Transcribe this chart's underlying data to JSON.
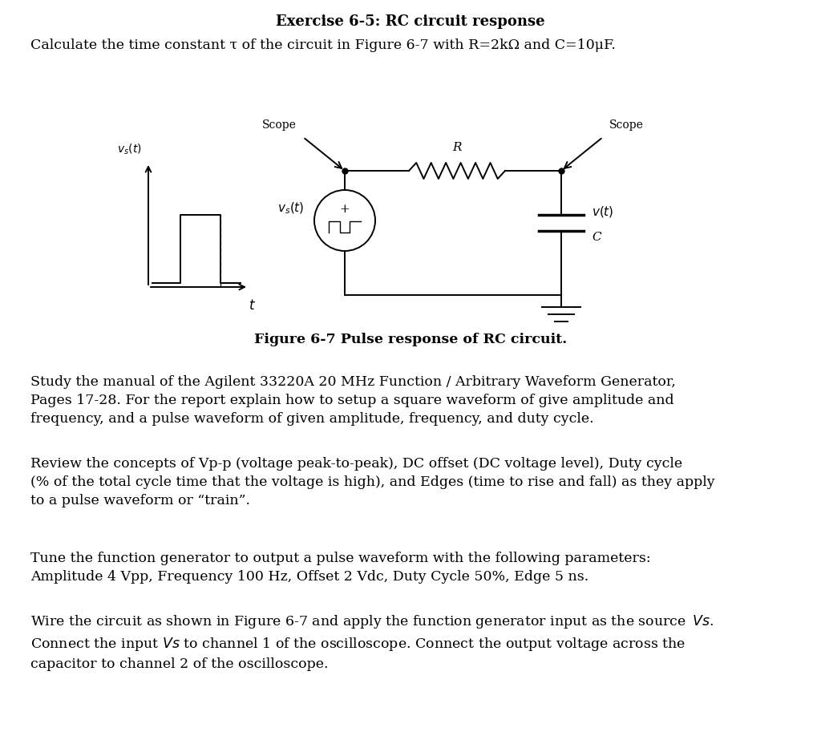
{
  "title": "Exercise 6-5: RC circuit response",
  "subtitle": "Calculate the time constant τ of the circuit in Figure 6-7 with R=2kΩ and C=10μF.",
  "figure_caption": "Figure 6-7 Pulse response of RC circuit.",
  "p1": "Study the manual of the Agilent 33220A 20 MHz Function / Arbitrary Waveform Generator,\nPages 17-28. For the report explain how to setup a square waveform of give amplitude and\nfrequency, and a pulse waveform of given amplitude, frequency, and duty cycle.",
  "p2": "Review the concepts of Vp-p (voltage peak-to-peak), DC offset (DC voltage level), Duty cycle\n(% of the total cycle time that the voltage is high), and Edges (time to rise and fall) as they apply\nto a pulse waveform or “train”.",
  "p3": "Tune the function generator to output a pulse waveform with the following parameters:\nAmplitude 4 Vpp, Frequency 100 Hz, Offset 2 Vdc, Duty Cycle 50%, Edge 5 ns.",
  "p4a": "Wire the circuit as shown in Figure 6-7 and apply the function generator input as the source ",
  "p4b": "Vs",
  "p4c": ".\nConnect the input ",
  "p4d": "Vs",
  "p4e": " to channel 1 of the oscilloscope. Connect the output voltage across the\ncapacitor to channel 2 of the oscilloscope.",
  "background_color": "#ffffff",
  "text_color": "#000000",
  "font_size_title": 13,
  "font_size_body": 12.5,
  "font_size_small": 10
}
